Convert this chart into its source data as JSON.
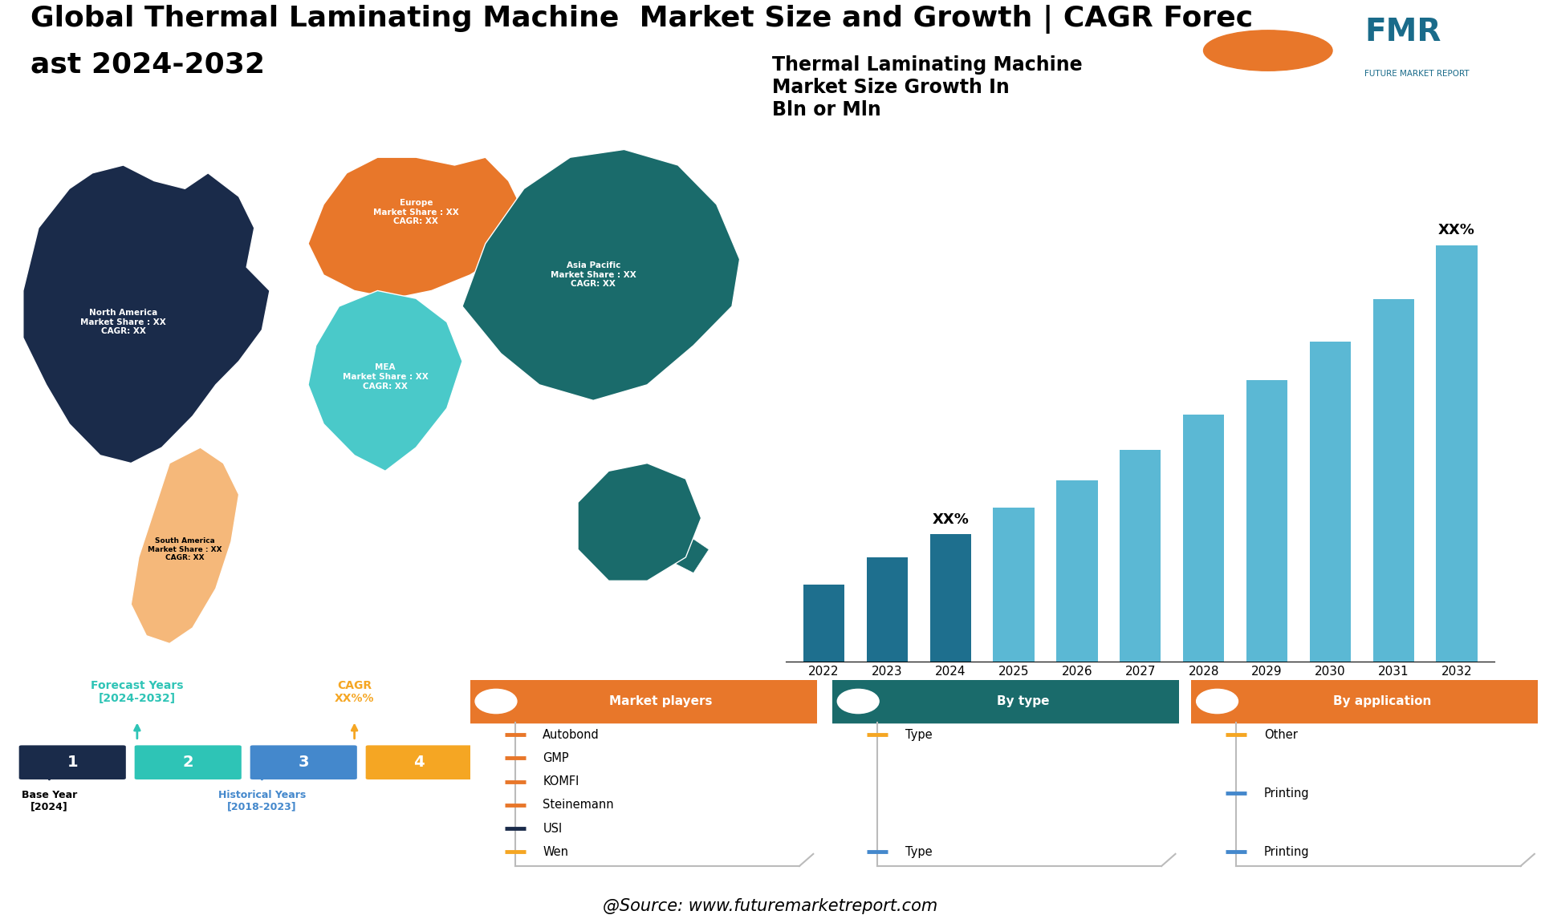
{
  "title_line1": "Global Thermal Laminating Machine  Market Size and Growth | CAGR Forec",
  "title_line2": "ast 2024-2032",
  "title_fontsize": 26,
  "background_color": "#ffffff",
  "bar_chart_title": "Thermal Laminating Machine\nMarket Size Growth In\nBln or Mln",
  "bar_years": [
    "2022",
    "2023",
    "2024",
    "2025",
    "2026",
    "2027",
    "2028",
    "2029",
    "2030",
    "2031",
    "2032"
  ],
  "bar_values": [
    2.0,
    2.7,
    3.3,
    4.0,
    4.7,
    5.5,
    6.4,
    7.3,
    8.3,
    9.4,
    10.8
  ],
  "bar_color_dark": "#1e6f8e",
  "bar_color_light": "#5bb8d4",
  "bar_label_2024": "XX%",
  "bar_label_2032": "XX%",
  "north_america_color": "#1a2b4a",
  "south_america_color": "#f5b87a",
  "europe_color": "#e8772a",
  "mea_color": "#4ac9c9",
  "asia_pacific_color": "#1a6b6b",
  "timeline_seg_colors": [
    "#1a2b4a",
    "#2ec4b6",
    "#4488cc",
    "#f5a623"
  ],
  "timeline_seg_nums": [
    "1",
    "2",
    "3",
    "4"
  ],
  "forecast_years_label": "Forecast Years\n[2024-2032]",
  "cagr_label": "CAGR\nXX%%",
  "base_year_label": "Base Year\n[2024]",
  "historical_years_label": "Historical Years\n[2018-2023]",
  "teal_color": "#2ec4b6",
  "orange_color": "#f5a623",
  "dark_navy": "#1a2b4a",
  "blue_color": "#4488cc",
  "panels": [
    {
      "title": "Market players",
      "title_bg": "#e8772a",
      "items": [
        "Autobond",
        "GMP",
        "KOMFI",
        "Steinemann",
        "USI",
        "Wen"
      ],
      "item_colors": [
        "#e8772a",
        "#e8772a",
        "#e8772a",
        "#e8772a",
        "#1a2b4a",
        "#f5a623"
      ]
    },
    {
      "title": "By type",
      "title_bg": "#1a6b6b",
      "items": [
        "Type",
        "Type"
      ],
      "item_colors": [
        "#f5a623",
        "#4488cc"
      ]
    },
    {
      "title": "By application",
      "title_bg": "#e8772a",
      "items": [
        "Other",
        "Printing",
        "Printing"
      ],
      "item_colors": [
        "#f5a623",
        "#4488cc",
        "#4488cc"
      ]
    }
  ],
  "source_text": "@Source: www.futuremarketreport.com",
  "source_fontsize": 15
}
